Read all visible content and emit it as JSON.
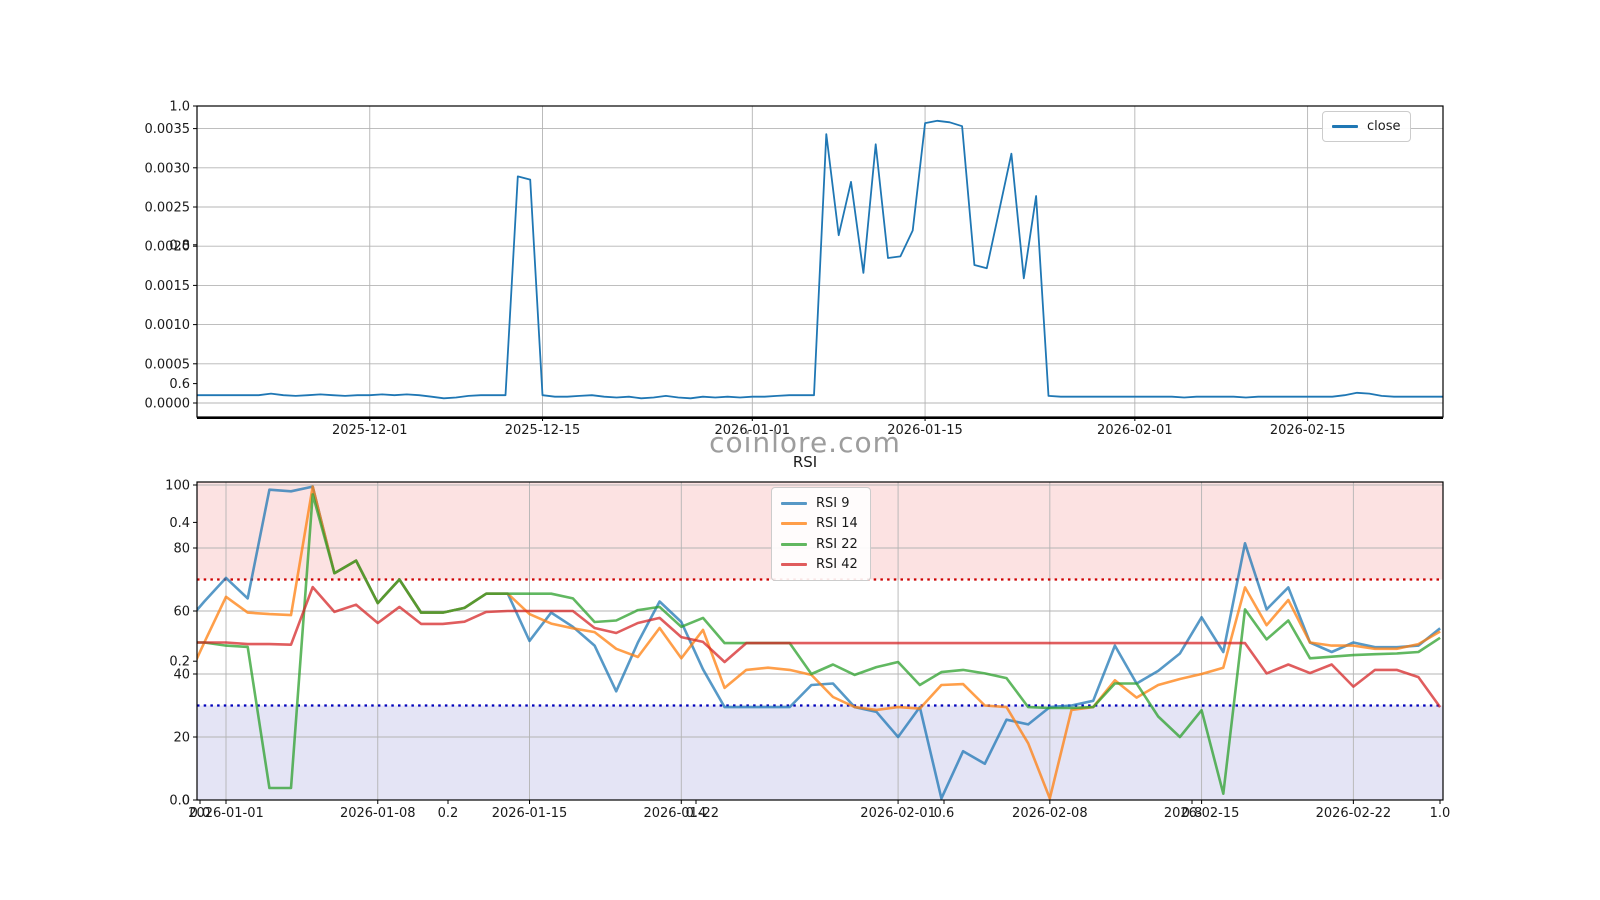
{
  "watermark": "coinlore.com",
  "colors": {
    "grid": "#b4b4b4",
    "spine": "#000000",
    "tick_text": "#1a1a1a",
    "overbought_band": "#fce2e2",
    "oversold_band": "#e4e4f5",
    "overbought_line": "#cc0000",
    "oversold_line": "#0000bb"
  },
  "background_axis": {
    "xtick_labels": [
      "0.0",
      "0.2",
      "0.4",
      "0.6",
      "0.8",
      "1.0"
    ],
    "ytick_labels": [
      "0.0",
      "0.2",
      "0.4",
      "0.6",
      "0.8",
      "1.0"
    ]
  },
  "chart_data": [
    {
      "id": "price",
      "type": "line",
      "title": "",
      "xlabel": "",
      "ylabel": "",
      "start_date": "2025-11-17",
      "interval_days": 1,
      "grid": true,
      "legend_position": "upper right",
      "ylim": [
        -0.00018,
        0.00379
      ],
      "yticks": {
        "values": [
          0.0,
          0.0005,
          0.001,
          0.0015,
          0.002,
          0.0025,
          0.003,
          0.0035
        ],
        "labels": [
          "0.0000",
          "0.0005",
          "0.0010",
          "0.0015",
          "0.0020",
          "0.0025",
          "0.0030",
          "0.0035"
        ]
      },
      "xticks": {
        "day_index": [
          14,
          28,
          45,
          59,
          76,
          90
        ],
        "labels": [
          "2025-12-01",
          "2025-12-15",
          "2026-01-01",
          "2026-01-15",
          "2026-02-01",
          "2026-02-15"
        ]
      },
      "series": [
        {
          "name": "close",
          "color": "#1f77b4",
          "values": [
            0.0001,
            0.0001,
            0.0001,
            0.0001,
            0.0001,
            0.0001,
            0.00012,
            0.0001,
            9e-05,
            0.0001,
            0.00011,
            0.0001,
            9e-05,
            0.0001,
            0.0001,
            0.00011,
            0.0001,
            0.00011,
            0.0001,
            8e-05,
            6e-05,
            7e-05,
            9e-05,
            0.0001,
            0.0001,
            0.0001,
            0.00289,
            0.00285,
            0.0001,
            8e-05,
            8e-05,
            9e-05,
            0.0001,
            8e-05,
            7e-05,
            8e-05,
            6e-05,
            7e-05,
            9e-05,
            7e-05,
            6e-05,
            8e-05,
            7e-05,
            8e-05,
            7e-05,
            8e-05,
            8e-05,
            9e-05,
            0.0001,
            0.0001,
            0.0001,
            0.00343,
            0.00214,
            0.00282,
            0.00166,
            0.0033,
            0.00185,
            0.00187,
            0.0022,
            0.00357,
            0.0036,
            0.00358,
            0.00353,
            0.00176,
            0.00172,
            0.00245,
            0.00318,
            0.00159,
            0.00264,
            9e-05,
            8e-05,
            8e-05,
            8e-05,
            8e-05,
            8e-05,
            8e-05,
            8e-05,
            8e-05,
            8e-05,
            8e-05,
            7e-05,
            8e-05,
            8e-05,
            8e-05,
            8e-05,
            7e-05,
            8e-05,
            8e-05,
            8e-05,
            8e-05,
            8e-05,
            8e-05,
            8e-05,
            0.0001,
            0.00013,
            0.00012,
            9e-05,
            8e-05,
            8e-05,
            8e-05,
            8e-05,
            8e-05
          ]
        }
      ]
    },
    {
      "id": "rsi",
      "type": "line",
      "title": "RSI",
      "xlabel": "",
      "ylabel": "",
      "start_date": "2025-12-30",
      "interval_days": 1,
      "grid": true,
      "legend_position": "upper left of center",
      "ylim": [
        0,
        100
      ],
      "overbought_level": 70,
      "oversold_level": 30,
      "bands": [
        {
          "name": "overbought",
          "range": [
            70,
            100
          ],
          "color": "#fce2e2"
        },
        {
          "name": "oversold",
          "range": [
            0,
            30
          ],
          "color": "#e4e4f5"
        }
      ],
      "threshold_lines": [
        {
          "value": 70,
          "color": "#cc0000",
          "style": "dotted"
        },
        {
          "value": 30,
          "color": "#0000bb",
          "style": "dotted"
        }
      ],
      "yticks": {
        "values": [
          0,
          20,
          40,
          60,
          80,
          100
        ],
        "labels": [
          "0",
          "20",
          "40",
          "60",
          "80",
          "100"
        ]
      },
      "xticks": {
        "day_index": [
          2,
          9,
          16,
          23,
          33,
          40,
          47,
          54
        ],
        "labels": [
          "2026-01-01",
          "2026-01-08",
          "2026-01-15",
          "2026-01-22",
          "2026-02-01",
          "2026-02-08",
          "2026-02-15",
          "2026-02-22"
        ]
      },
      "series": [
        {
          "name": "RSI 9",
          "color": "rgba(31,119,180,0.75)",
          "values": [
            55,
            63,
            70.5,
            64,
            98.5,
            98,
            99.5,
            72,
            76,
            62.5,
            70,
            59.5,
            59.5,
            61,
            65.5,
            65.5,
            50.5,
            59.5,
            55,
            49,
            34.5,
            50,
            63,
            56.5,
            41.5,
            29.5,
            29.5,
            29.5,
            29.5,
            36.5,
            37,
            29.5,
            28,
            20,
            29.5,
            0.5,
            15.5,
            11.5,
            25.5,
            24,
            29.5,
            30,
            31.5,
            49,
            37,
            41,
            46.5,
            58,
            47,
            81.5,
            60.5,
            67.5,
            50,
            47,
            50,
            48.5,
            48.5,
            49,
            54.5
          ]
        },
        {
          "name": "RSI 14",
          "color": "rgba(255,127,14,0.75)",
          "values": [
            35,
            50,
            64.5,
            59.5,
            59,
            58.7,
            99.5,
            72,
            76,
            62.5,
            70,
            59.5,
            59.5,
            61,
            65.5,
            65.5,
            59,
            56,
            54.5,
            53.3,
            48,
            45.4,
            54.6,
            45,
            54,
            35.6,
            41.3,
            42,
            41.3,
            39.7,
            32.7,
            29.5,
            28.6,
            29.5,
            29,
            36.5,
            36.8,
            30,
            29.5,
            18,
            0.5,
            28.6,
            29.5,
            38,
            32.5,
            36.5,
            38.4,
            40,
            42,
            67.5,
            55.5,
            63.5,
            50,
            49,
            49,
            48,
            48,
            49.5,
            53.5
          ]
        },
        {
          "name": "RSI 22",
          "color": "rgba(44,160,44,0.75)",
          "values": [
            50,
            50,
            49,
            48.6,
            3.8,
            3.8,
            97,
            72,
            76,
            62.5,
            70,
            59.5,
            59.5,
            61,
            65.5,
            65.5,
            65.5,
            65.5,
            64,
            56.5,
            57,
            60.3,
            61.3,
            55,
            57.8,
            49.8,
            49.8,
            49.8,
            49.8,
            40,
            43,
            39.7,
            42.2,
            43.8,
            36.5,
            40.6,
            41.3,
            40.2,
            38.7,
            29.5,
            29.2,
            29.2,
            29.5,
            37,
            37,
            26.5,
            20,
            28.5,
            2,
            60.5,
            51,
            57,
            45,
            45.5,
            46,
            46.3,
            46.5,
            47,
            51.5
          ]
        },
        {
          "name": "RSI 42",
          "color": "rgba(214,39,40,0.75)",
          "values": [
            50,
            50,
            50,
            49.5,
            49.5,
            49.3,
            67.6,
            59.7,
            62,
            56.2,
            61.3,
            55.9,
            55.9,
            56.6,
            59.7,
            60,
            60,
            60,
            60,
            54.6,
            53,
            56.2,
            57.8,
            51.7,
            50.2,
            43.8,
            49.8,
            49.8,
            49.8,
            49.8,
            49.8,
            49.8,
            49.8,
            49.8,
            49.8,
            49.8,
            49.8,
            49.8,
            49.8,
            49.8,
            49.8,
            49.8,
            49.8,
            49.8,
            49.8,
            49.8,
            49.8,
            49.8,
            49.8,
            49.8,
            40.2,
            43,
            40.3,
            43,
            36,
            41.3,
            41.3,
            39,
            29.5
          ]
        }
      ]
    }
  ]
}
